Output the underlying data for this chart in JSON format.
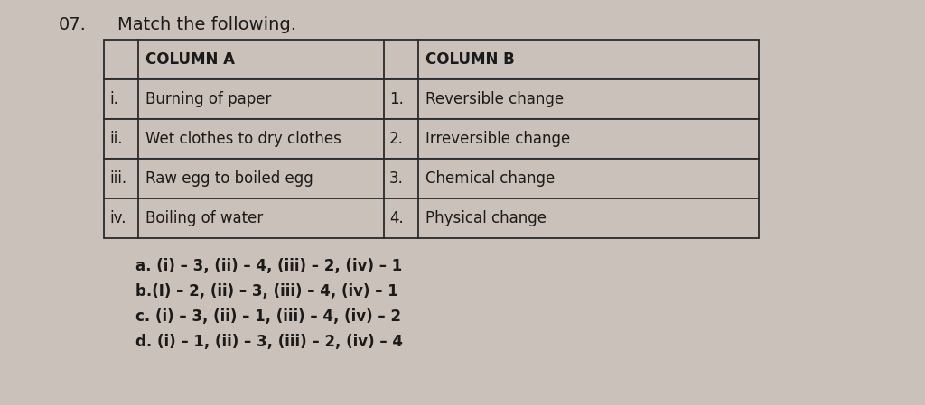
{
  "question_number": "07.",
  "question_text": "Match the following.",
  "background_color": "#cac2ba",
  "table_bg": "#cac2ba",
  "border_color": "#2a2a2a",
  "text_color": "#1a1a1a",
  "col_a_header": "COLUMN A",
  "col_b_header": "COLUMN B",
  "col_a_rows": [
    [
      "i.",
      "Burning of paper"
    ],
    [
      "ii.",
      "Wet clothes to dry clothes"
    ],
    [
      "iii.",
      "Raw egg to boiled egg"
    ],
    [
      "iv.",
      "Boiling of water"
    ]
  ],
  "col_b_rows": [
    [
      "1.",
      "Reversible change"
    ],
    [
      "2.",
      "Irreversible change"
    ],
    [
      "3.",
      "Chemical change"
    ],
    [
      "4.",
      "Physical change"
    ]
  ],
  "options": [
    "a. (i) – 3, (ii) – 4, (iii) – 2, (iv) – 1",
    "b.(I) – 2, (ii) – 3, (iii) – 4, (iv) – 1",
    "c. (i) – 3, (ii) – 1, (iii) – 4, (iv) – 2",
    "d. (i) – 1, (ii) – 3, (iii) – 2, (iv) – 4"
  ],
  "font_size_question": 14,
  "font_size_header": 12,
  "font_size_cell": 12,
  "font_size_options": 12
}
